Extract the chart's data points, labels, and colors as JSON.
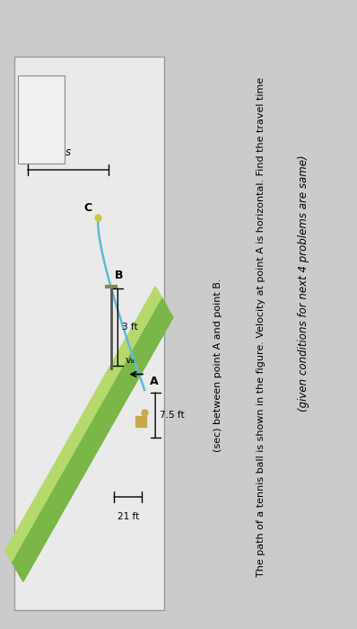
{
  "title_line1": "(given conditions for next 4 problems are same)",
  "text_line1": "The path of a tennis ball is shown in the figure. Velocity at point A is horizontal. Find the travel time",
  "text_line2": "(sec) between point A and point B.",
  "bg_color": "#cbcbcb",
  "panel_bg": "#eaeaea",
  "ball_path_color": "#5bbcd6",
  "dim_75ft": "7.5 ft",
  "dim_21ft": "21 ft",
  "dim_3ft": "3 ft",
  "dim_s": "s",
  "label_A": "A",
  "label_B": "B",
  "label_C": "C",
  "label_vA": "vₐ",
  "title_fontsize": 8.5,
  "text_fontsize": 8.5,
  "ground_green_dark": "#7ab648",
  "ground_green_light": "#b5d96a",
  "net_color": "#555555",
  "ball_dot_color": "#c8c830"
}
